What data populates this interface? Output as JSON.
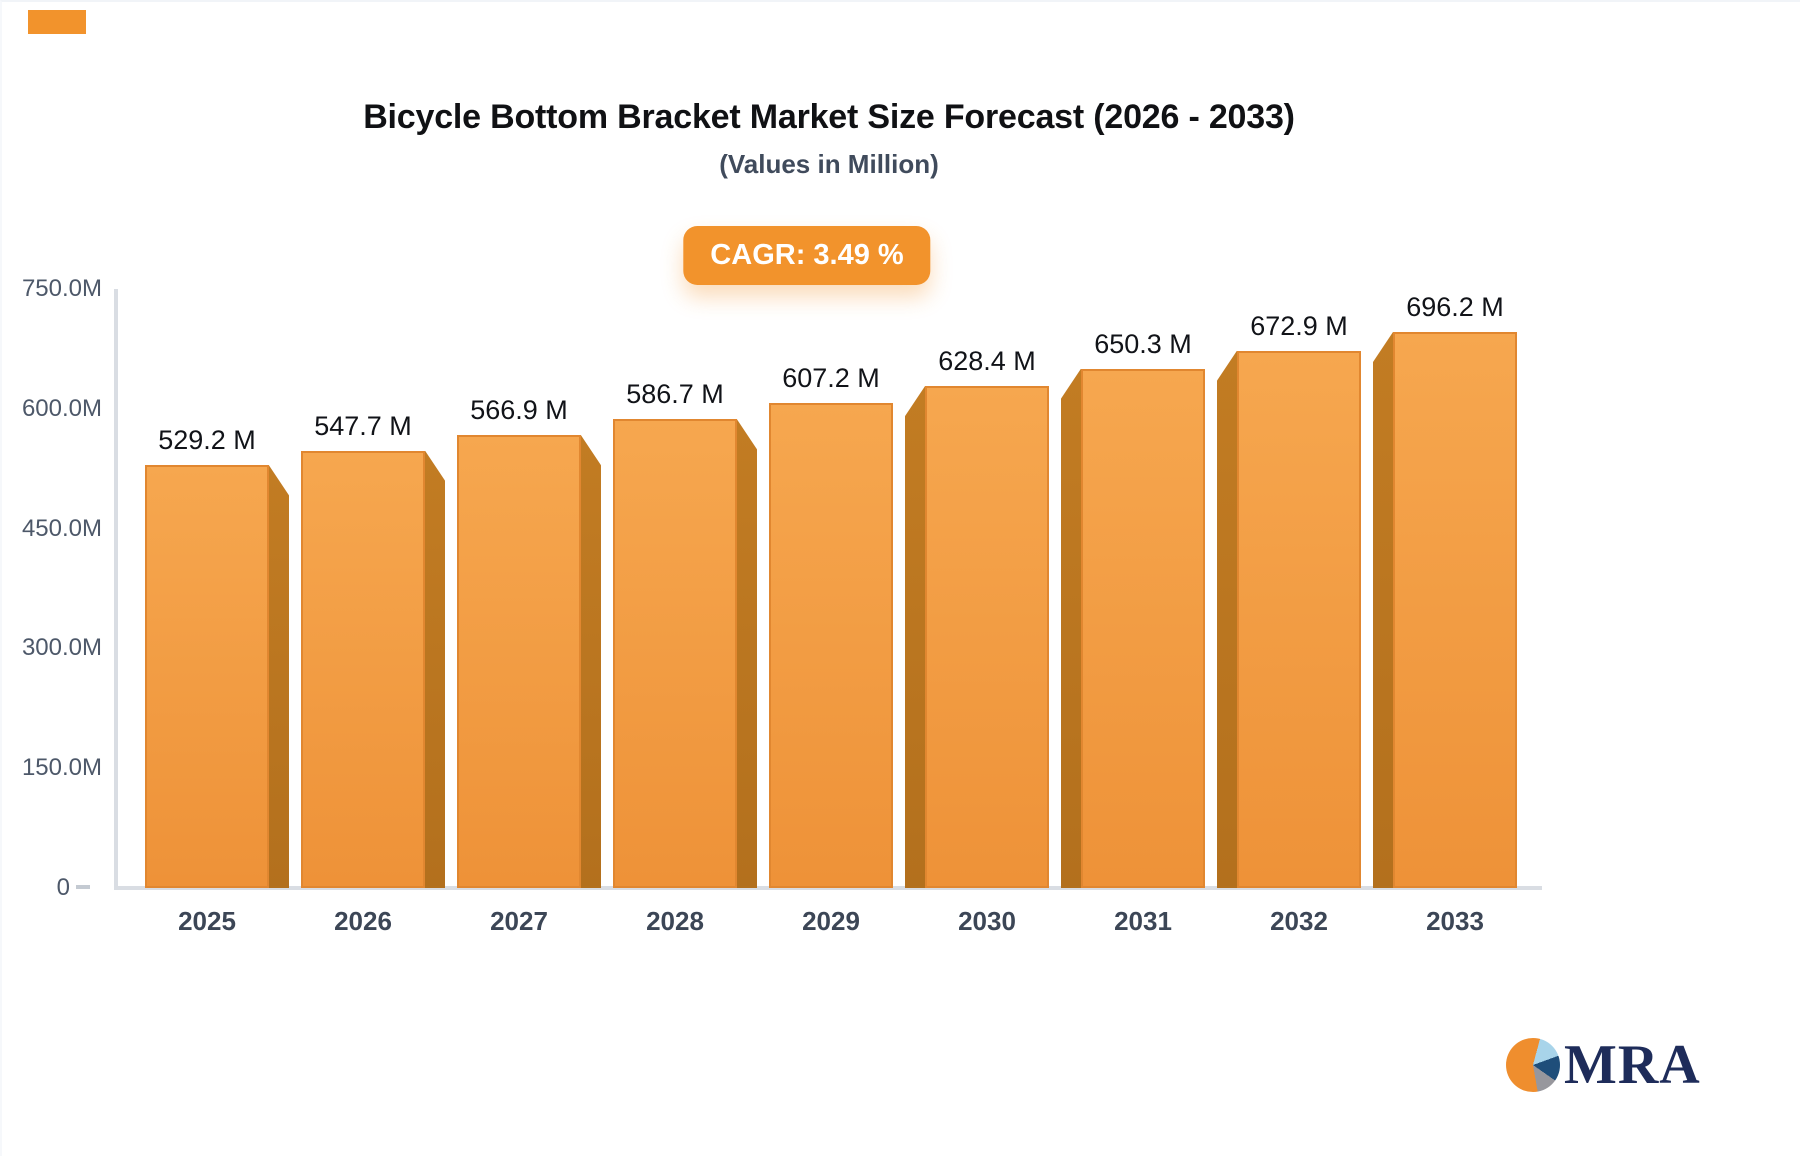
{
  "theme": {
    "accent": "#f2932c",
    "bar_face_top": "#f6a74f",
    "bar_face_bottom": "#ee9238",
    "bar_border": "#e18730",
    "bar_side": "#bd7820",
    "axis_line": "#d9dde3",
    "title_color": "#101114",
    "subtitle_color": "#404b5c",
    "tick_label_color": "#4d5869",
    "year_label_color": "#3c4656",
    "value_label_color": "#111318",
    "badge_text_color": "#ffffff",
    "logo_navy": "#1e2c5a",
    "pie_orange": "#ef8e2e",
    "pie_light_blue": "#a8d4ea",
    "pie_navy": "#1f4e7a",
    "pie_gray": "#97979d"
  },
  "header": {
    "title": "Bicycle Bottom Bracket Market Size Forecast (2026 - 2033)",
    "subtitle": "(Values in Million)"
  },
  "badge": {
    "label": "CAGR: 3.49 %"
  },
  "chart_data": {
    "type": "bar",
    "title": "Bicycle Bottom Bracket Market Size Forecast (2026 - 2033)",
    "subtitle": "(Values in Million)",
    "unit": "Million",
    "cagr_percent": 3.49,
    "categories": [
      "2025",
      "2026",
      "2027",
      "2028",
      "2029",
      "2030",
      "2031",
      "2032",
      "2033"
    ],
    "values": [
      529.2,
      547.7,
      566.9,
      586.7,
      607.2,
      628.4,
      650.3,
      672.9,
      696.2
    ],
    "value_labels": [
      "529.2 M",
      "547.7 M",
      "566.9 M",
      "586.7 M",
      "607.2 M",
      "628.4 M",
      "650.3 M",
      "672.9 M",
      "696.2 M"
    ],
    "xlabel": "",
    "ylabel": "",
    "ylim": [
      0,
      750
    ],
    "grid": false,
    "legend": "none",
    "y_ticks": [
      {
        "label": "0",
        "value": 0
      },
      {
        "label": "150.0M",
        "value": 150
      },
      {
        "label": "300.0M",
        "value": 300
      },
      {
        "label": "450.0M",
        "value": 450
      },
      {
        "label": "600.0M",
        "value": 600
      },
      {
        "label": "750.0M",
        "value": 750
      }
    ]
  },
  "logo": {
    "text": "MRA"
  }
}
